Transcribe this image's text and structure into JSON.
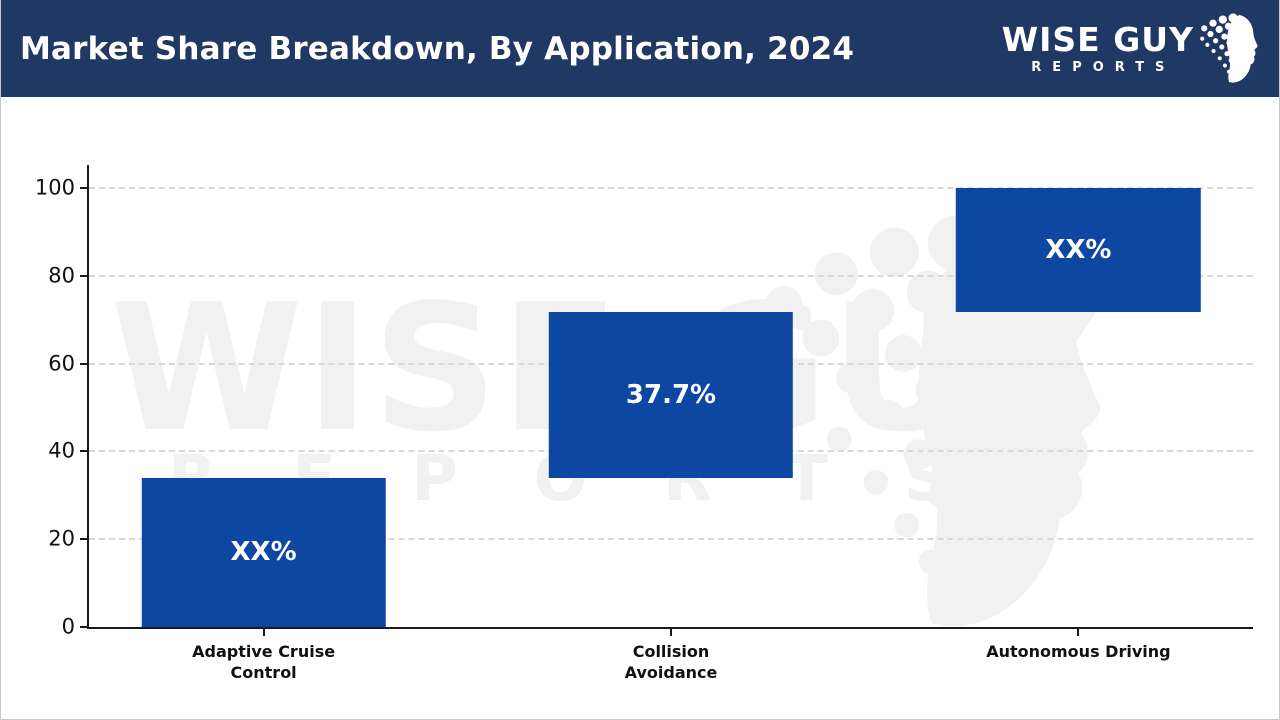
{
  "header": {
    "title": "Market Share Breakdown, By Application, 2024",
    "brand": {
      "line1": "WISE GUY",
      "line2": "REPORTS"
    },
    "background_color": "#1f3864",
    "text_color": "#ffffff"
  },
  "watermark": {
    "line1": "WISE GUY",
    "line2": "REPORTS"
  },
  "chart_data": {
    "type": "bar",
    "variant": "floating-segment-waterfall",
    "title": "Market Share Breakdown, By Application, 2024",
    "xlabel": "",
    "ylabel": "",
    "categories": [
      "Adaptive Cruise Control",
      "Collision Avoidance",
      "Autonomous Driving"
    ],
    "category_label_lines": [
      [
        "Adaptive Cruise",
        "Control"
      ],
      [
        "Collision",
        "Avoidance"
      ],
      [
        "Autonomous Driving"
      ]
    ],
    "series": [
      {
        "name": "Market share (%)",
        "segments": [
          {
            "category": "Adaptive Cruise Control",
            "start": 0,
            "end": 34.0,
            "value_label": "XX%"
          },
          {
            "category": "Collision Avoidance",
            "start": 34.0,
            "end": 71.7,
            "value_label": "37.7%"
          },
          {
            "category": "Autonomous Driving",
            "start": 71.7,
            "end": 100.0,
            "value_label": "XX%"
          }
        ]
      }
    ],
    "yticks": [
      0,
      20,
      40,
      60,
      80,
      100
    ],
    "ylim": [
      0,
      105.2
    ],
    "grid": {
      "axis": "y",
      "style": "dashed",
      "color": "#d8d8d8"
    },
    "legend": "none",
    "bar_color": "#0d47a1",
    "bar_label_color": "#ffffff",
    "axis_color": "#1a1a1a",
    "tick_label_color": "#111111"
  }
}
